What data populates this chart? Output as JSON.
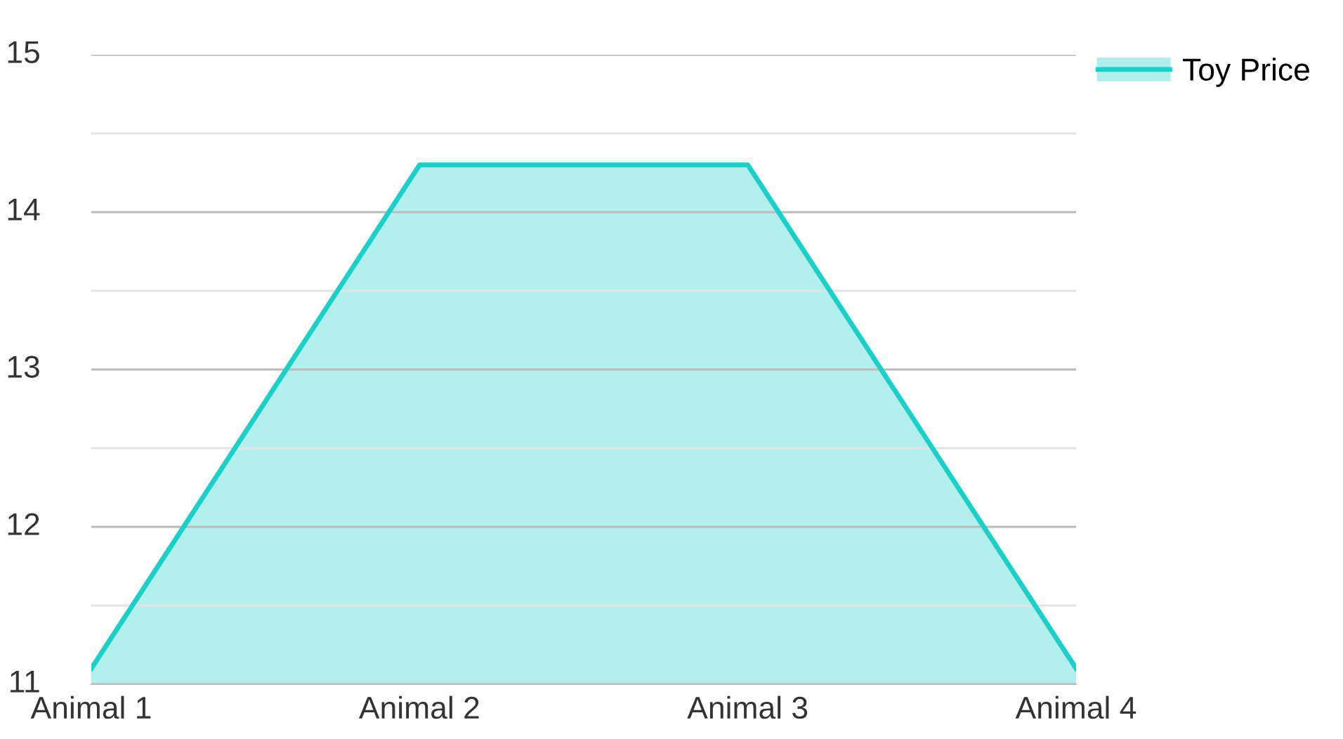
{
  "chart_data": {
    "type": "area",
    "categories": [
      "Animal 1",
      "Animal 2",
      "Animal 3",
      "Animal 4"
    ],
    "series": [
      {
        "name": "Toy Price",
        "color": "#1ccfc9",
        "values": [
          11.1,
          14.3,
          14.3,
          11.1
        ]
      }
    ],
    "ylim": [
      11,
      15
    ],
    "yticks": [
      11,
      {
        "value": 11.5,
        "label": null
      },
      12,
      {
        "value": 12.5,
        "label": null
      },
      13,
      {
        "value": 13.5,
        "label": null
      },
      14,
      {
        "value": 14.5,
        "label": null
      },
      15
    ],
    "grid": "y",
    "legend": "top right",
    "marker": "none",
    "line_style": "solid"
  }
}
